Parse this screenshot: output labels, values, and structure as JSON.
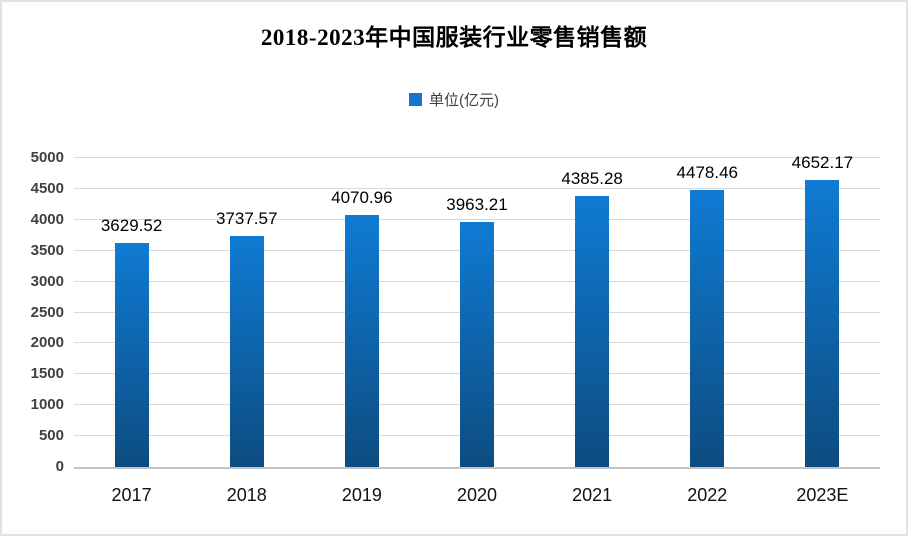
{
  "page": {
    "title": "2018-2023年中国服装行业零售销售额"
  },
  "legend": {
    "label": "单位(亿元)",
    "swatch_color": "#1176ce"
  },
  "colors": {
    "bar_top": "#0f7bd3",
    "bar_bottom": "#0d4c80",
    "gridline": "#d9d9d9",
    "baseline": "#c3c3c3",
    "y_tick_text": "#404040",
    "x_tick_text": "#111111",
    "value_label_text": "#000000"
  },
  "chart_data": {
    "type": "bar",
    "title": "2018-2023年中国服装行业零售销售额",
    "series_name": "单位(亿元)",
    "categories": [
      "2017",
      "2018",
      "2019",
      "2020",
      "2021",
      "2022",
      "2023E"
    ],
    "values": [
      3629.52,
      3737.57,
      4070.96,
      3963.21,
      4385.28,
      4478.46,
      4652.17
    ],
    "value_labels": [
      "3629.52",
      "3737.57",
      "4070.96",
      "3963.21",
      "4385.28",
      "4478.46",
      "4652.17"
    ],
    "xlabel": "",
    "ylabel": "",
    "ylim": [
      0,
      5000
    ],
    "yticks": [
      0,
      500,
      1000,
      1500,
      2000,
      2500,
      3000,
      3500,
      4000,
      4500,
      5000
    ],
    "grid": true,
    "legend_position": "top-center",
    "bar_color_top": "#0f7bd3",
    "bar_color_bottom": "#0d4c80"
  }
}
